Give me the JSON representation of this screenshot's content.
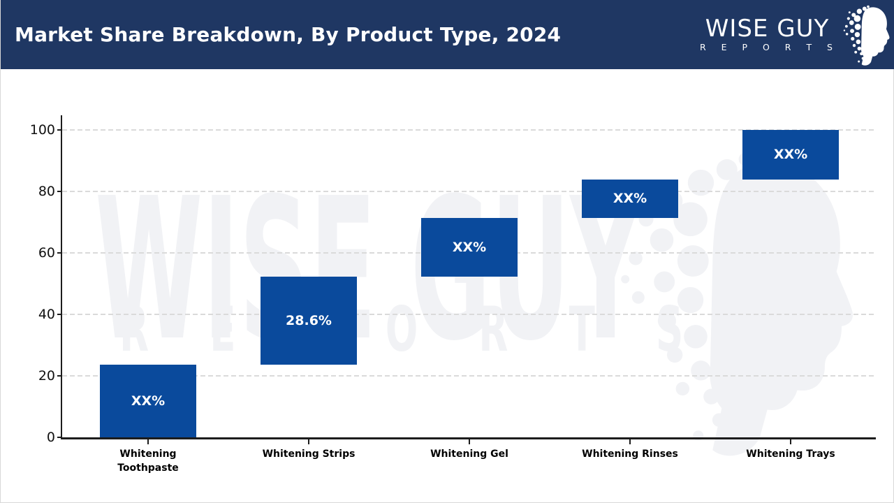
{
  "header": {
    "title": "Market Share Breakdown, By Product Type, 2024",
    "logo": {
      "wordmark": "WISE GUY",
      "subtext": "R E P O R T S"
    }
  },
  "watermark": {
    "wordmark": "WISE GUY",
    "subtext": "R E P O R T S"
  },
  "colors": {
    "header_bg": "#1F3763",
    "bar_fill": "#0A4A9C",
    "bar_label": "#FFFFFF",
    "gridline": "#DADADA",
    "axis": "#1C1C1C",
    "tick_text": "#111111",
    "watermark": "#F1F2F5",
    "canvas_border": "#D8D8D8"
  },
  "chart_data": {
    "type": "bar",
    "subtype": "waterfall-floating-bars",
    "title": "Market Share Breakdown, By Product Type, 2024",
    "xlabel": "",
    "ylabel": "",
    "ylim": [
      0,
      105
    ],
    "yticks": [
      0,
      20,
      40,
      60,
      80,
      100
    ],
    "grid": "horizontal-dashed",
    "legend": "none",
    "categories": [
      "Whitening Toothpaste",
      "Whitening Strips",
      "Whitening Gel",
      "Whitening Rinses",
      "Whitening Trays"
    ],
    "segments": [
      {
        "category": "Whitening Toothpaste",
        "start": 0,
        "end": 23.6,
        "label": "XX%"
      },
      {
        "category": "Whitening Strips",
        "start": 23.6,
        "end": 52.2,
        "label": "28.6%",
        "value": 28.6
      },
      {
        "category": "Whitening Gel",
        "start": 52.2,
        "end": 71.3,
        "label": "XX%"
      },
      {
        "category": "Whitening Rinses",
        "start": 71.3,
        "end": 83.9,
        "label": "XX%"
      },
      {
        "category": "Whitening Trays",
        "start": 83.9,
        "end": 100,
        "label": "XX%"
      }
    ]
  }
}
